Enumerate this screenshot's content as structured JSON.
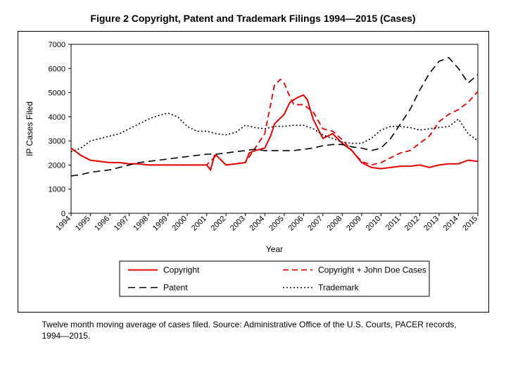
{
  "title": "Figure 2 Copyright, Patent and Trademark Filings 1994—2015 (Cases)",
  "caption": "Twelve month moving average of cases filed. Source: Administrative Office of the U.S. Courts, PACER records, 1994—2015.",
  "chart": {
    "type": "line",
    "ylabel": "IP Cases Filed",
    "xlabel": "Year",
    "label_fontsize": 12,
    "tick_fontsize": 11,
    "background_color": "#ffffff",
    "border_color": "#000000",
    "plot_border": true,
    "ylim": [
      0,
      7000
    ],
    "ytick_step": 1000,
    "yticks": [
      0,
      1000,
      2000,
      3000,
      4000,
      5000,
      6000,
      7000
    ],
    "xlim": [
      1994,
      2015
    ],
    "xticks": [
      1994,
      1995,
      1996,
      1997,
      1998,
      1999,
      2000,
      2001,
      2002,
      2003,
      2004,
      2005,
      2006,
      2007,
      2008,
      2009,
      2010,
      2011,
      2012,
      2013,
      2014,
      2015
    ],
    "xtick_rotation": 45,
    "series": [
      {
        "name": "Copyright",
        "color": "#e60000",
        "dash": "solid",
        "width": 2.0,
        "x": [
          1994,
          1994.5,
          1995,
          1995.5,
          1996,
          1996.5,
          1997,
          1997.5,
          1998,
          1998.5,
          1999,
          1999.5,
          2000,
          2000.5,
          2001,
          2001.2,
          2001.4,
          2001.5,
          2002,
          2002.5,
          2003,
          2003.2,
          2003.5,
          2004,
          2004.3,
          2004.5,
          2005,
          2005.3,
          2005.7,
          2006,
          2006.2,
          2006.5,
          2007,
          2007.5,
          2008,
          2008.5,
          2009,
          2009.5,
          2010,
          2010.5,
          2011,
          2011.5,
          2012,
          2012.5,
          2013,
          2013.5,
          2014,
          2014.5,
          2015
        ],
        "y": [
          2700,
          2400,
          2200,
          2150,
          2100,
          2100,
          2050,
          2050,
          2000,
          2000,
          2000,
          2000,
          2000,
          2000,
          2000,
          1800,
          2400,
          2400,
          2000,
          2050,
          2100,
          2500,
          2600,
          2700,
          3200,
          3700,
          4100,
          4600,
          4800,
          4900,
          4700,
          3900,
          3100,
          3300,
          2900,
          2600,
          2100,
          1900,
          1850,
          1900,
          1950,
          1950,
          2000,
          1900,
          2000,
          2050,
          2050,
          2200,
          2150
        ]
      },
      {
        "name": "Copyright + John Doe Cases",
        "color": "#e60000",
        "dash": "8,5",
        "width": 1.8,
        "x": [
          1994,
          1994.5,
          1995,
          1995.5,
          1996,
          1996.5,
          1997,
          1997.5,
          1998,
          1998.5,
          1999,
          1999.5,
          2000,
          2000.5,
          2001,
          2001.5,
          2002,
          2002.5,
          2003,
          2003.5,
          2004,
          2004.3,
          2004.5,
          2004.8,
          2005,
          2005.2,
          2005.5,
          2006,
          2006.5,
          2007,
          2007.5,
          2008,
          2008.5,
          2009,
          2009.5,
          2010,
          2010.5,
          2011,
          2011.5,
          2012,
          2012.5,
          2013,
          2013.5,
          2014,
          2014.5,
          2015
        ],
        "y": [
          2700,
          2400,
          2200,
          2150,
          2100,
          2100,
          2050,
          2050,
          2000,
          2000,
          2000,
          2000,
          2000,
          2000,
          2000,
          2400,
          2000,
          2050,
          2100,
          2700,
          3300,
          4500,
          5300,
          5550,
          5400,
          5000,
          4500,
          4500,
          4200,
          3500,
          3400,
          3050,
          2600,
          2150,
          2000,
          2100,
          2300,
          2500,
          2600,
          2900,
          3200,
          3800,
          4100,
          4300,
          4600,
          5050
        ]
      },
      {
        "name": "Patent",
        "color": "#000000",
        "dash": "10,6",
        "width": 1.6,
        "x": [
          1994,
          1994.5,
          1995,
          1995.5,
          1996,
          1996.5,
          1997,
          1997.5,
          1998,
          1998.5,
          1999,
          1999.5,
          2000,
          2000.5,
          2001,
          2001.5,
          2002,
          2002.5,
          2003,
          2003.5,
          2004,
          2004.5,
          2005,
          2005.5,
          2006,
          2006.5,
          2007,
          2007.5,
          2008,
          2008.5,
          2009,
          2009.5,
          2010,
          2010.5,
          2011,
          2011.5,
          2012,
          2012.5,
          2013,
          2013.5,
          2014,
          2014.5,
          2015
        ],
        "y": [
          1550,
          1600,
          1700,
          1750,
          1800,
          1900,
          2000,
          2100,
          2150,
          2200,
          2250,
          2300,
          2350,
          2400,
          2450,
          2450,
          2500,
          2550,
          2600,
          2650,
          2600,
          2600,
          2600,
          2600,
          2650,
          2700,
          2800,
          2850,
          2850,
          2750,
          2700,
          2600,
          2700,
          3100,
          3700,
          4300,
          5100,
          5800,
          6300,
          6450,
          6000,
          5400,
          5750
        ]
      },
      {
        "name": "Trademark",
        "color": "#000000",
        "dash": "2,3",
        "width": 1.6,
        "x": [
          1994,
          1994.5,
          1995,
          1995.5,
          1996,
          1996.5,
          1997,
          1997.5,
          1998,
          1998.5,
          1999,
          1999.5,
          2000,
          2000.5,
          2001,
          2001.5,
          2002,
          2002.5,
          2003,
          2003.5,
          2004,
          2004.5,
          2005,
          2005.5,
          2006,
          2006.5,
          2007,
          2007.5,
          2008,
          2008.5,
          2009,
          2009.5,
          2010,
          2010.5,
          2011,
          2011.5,
          2012,
          2012.5,
          2013,
          2013.5,
          2014,
          2014.5,
          2015
        ],
        "y": [
          2550,
          2700,
          3000,
          3100,
          3200,
          3300,
          3500,
          3700,
          3900,
          4050,
          4150,
          4000,
          3600,
          3400,
          3400,
          3300,
          3250,
          3350,
          3650,
          3550,
          3500,
          3600,
          3600,
          3650,
          3650,
          3500,
          3250,
          3100,
          2950,
          2900,
          2900,
          3100,
          3450,
          3600,
          3600,
          3550,
          3450,
          3500,
          3550,
          3600,
          3900,
          3300,
          3000
        ]
      }
    ],
    "legend": {
      "position": "bottom",
      "border": true,
      "border_color": "#000000",
      "items": [
        "Copyright",
        "Copyright + John Doe Cases",
        "Patent",
        "Trademark"
      ]
    }
  }
}
